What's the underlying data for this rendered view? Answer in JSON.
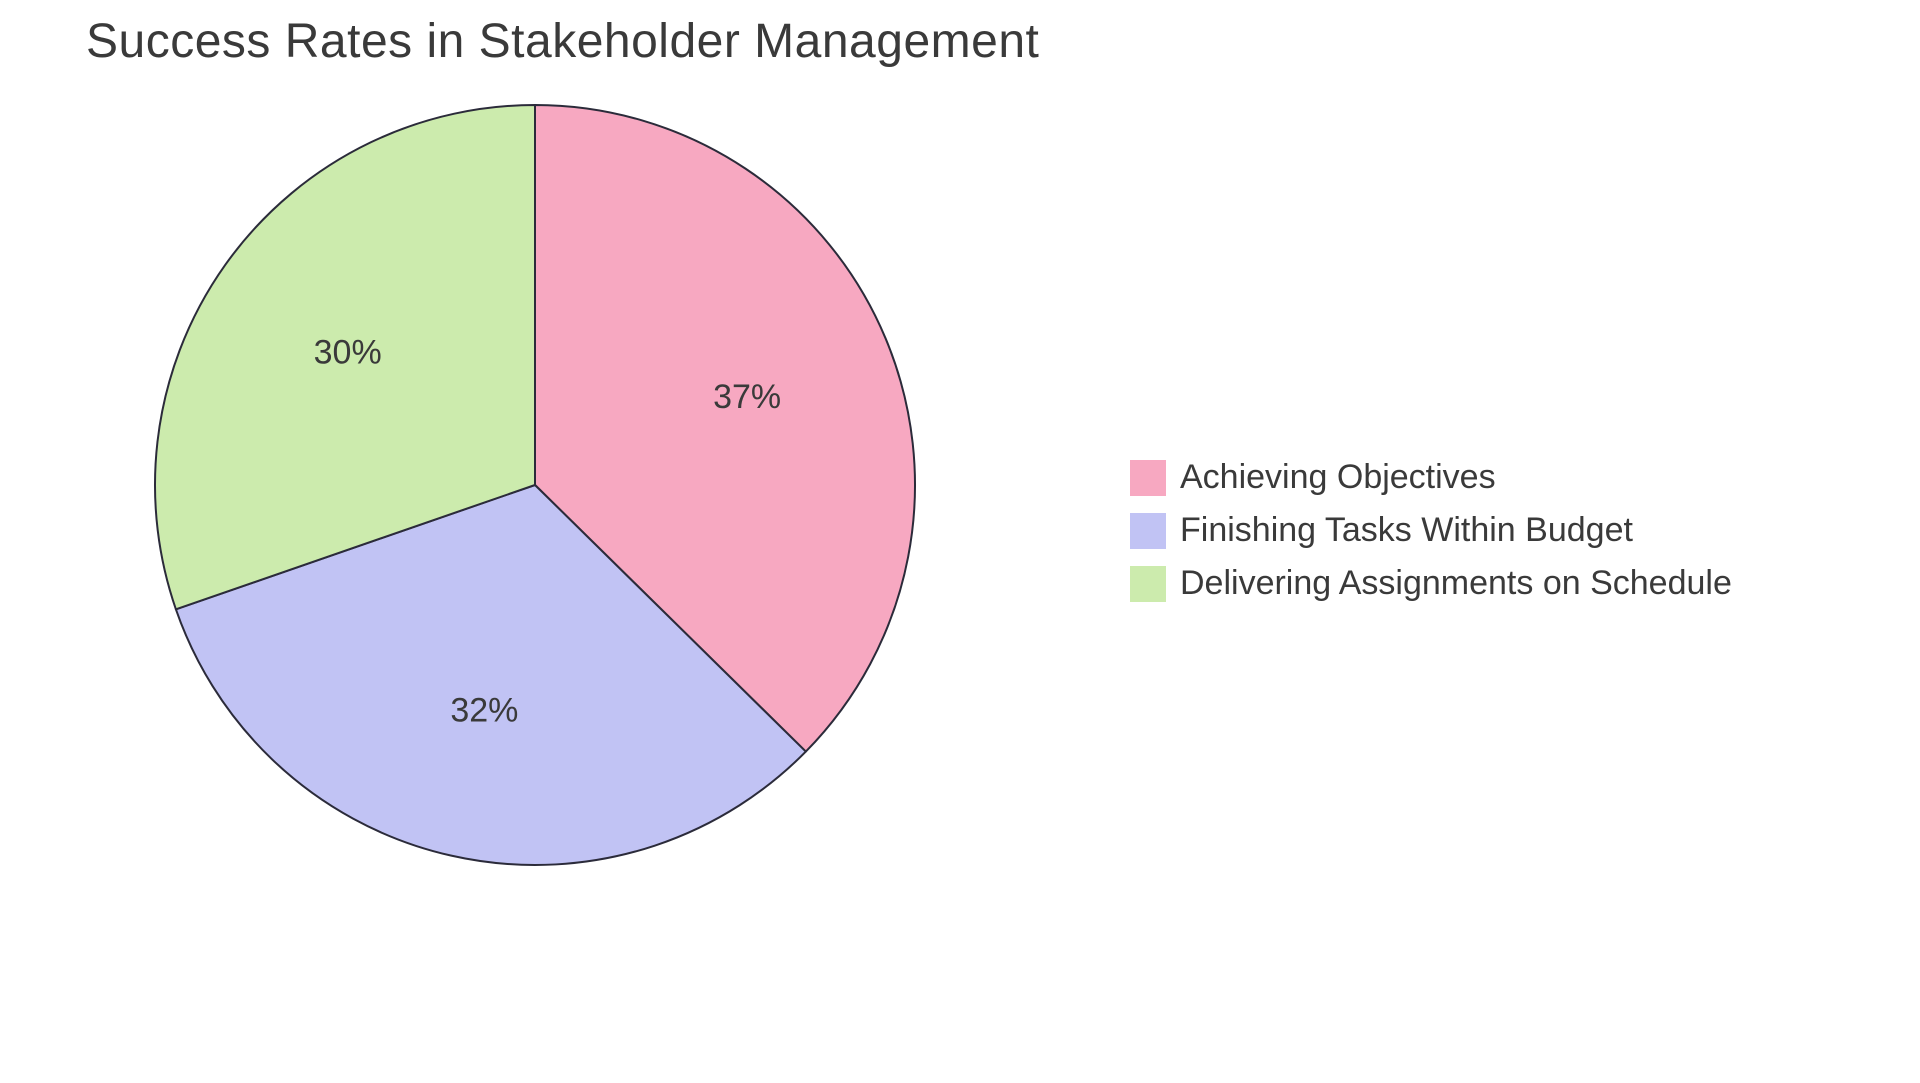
{
  "chart": {
    "type": "pie",
    "title": "Success Rates in Stakeholder Management",
    "title_fontsize": 48,
    "title_color": "#3a3a3a",
    "background_color": "#ffffff",
    "stroke_color": "#2b2b3a",
    "stroke_width": 2,
    "label_fontsize": 34,
    "label_color": "#3a3a3a",
    "legend_fontsize": 34,
    "slices": [
      {
        "label": "Achieving Objectives",
        "value": 37,
        "display": "37%",
        "color": "#f7a8c1"
      },
      {
        "label": "Finishing Tasks Within Budget",
        "value": 32,
        "display": "32%",
        "color": "#c1c3f4"
      },
      {
        "label": "Delivering Assignments on Schedule",
        "value": 30,
        "display": "30%",
        "color": "#ccebad"
      }
    ],
    "start_angle_deg": -90,
    "radius": 380,
    "label_radius": 230
  }
}
